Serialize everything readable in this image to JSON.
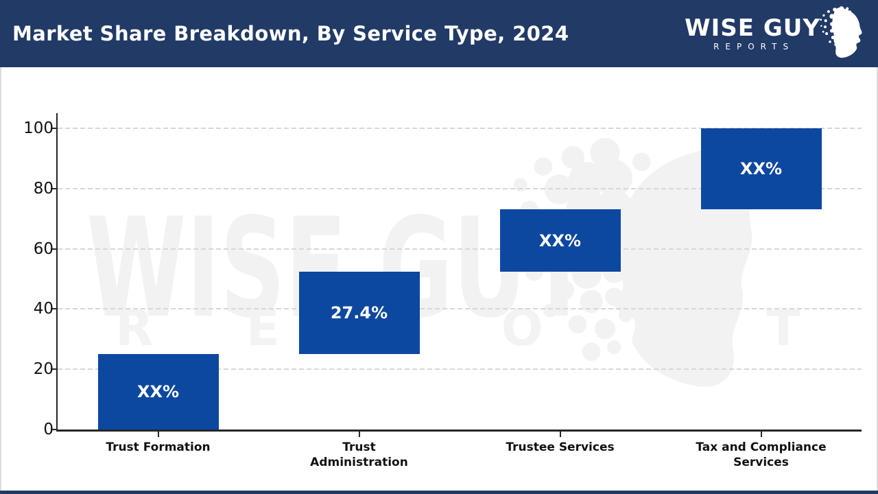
{
  "header": {
    "title": "Market Share Breakdown, By Service Type, 2024",
    "logo": {
      "line1": "WISE GUY",
      "line2": "REPORTS"
    }
  },
  "watermark": {
    "line1": "WISE GUY",
    "line2": "R E P O R T S"
  },
  "chart_data": {
    "type": "bar",
    "subtype": "waterfall",
    "title": "Market Share Breakdown, By Service Type, 2024",
    "xlabel": "",
    "ylabel": "",
    "ylim": [
      0,
      105
    ],
    "yticks": [
      0,
      20,
      40,
      60,
      80,
      100
    ],
    "grid": "horizontal-dashed",
    "legend": "none",
    "categories": [
      "Trust Formation",
      "Trust\nAdministration",
      "Trustee Services",
      "Tax and Compliance\nServices"
    ],
    "segments": [
      {
        "category": "Trust Formation",
        "start": 0,
        "end": 25,
        "label": "XX%"
      },
      {
        "category": "Trust Administration",
        "start": 25,
        "end": 52.4,
        "label": "27.4%"
      },
      {
        "category": "Trustee Services",
        "start": 52.4,
        "end": 73,
        "label": "XX%"
      },
      {
        "category": "Tax and Compliance Services",
        "start": 73,
        "end": 100,
        "label": "XX%"
      }
    ],
    "colors": {
      "bar": "#0d48a0",
      "grid": "#d7d7d7",
      "axis": "#262626",
      "bar_label_text": "#ffffff"
    }
  },
  "colors": {
    "header_bg": "#213a66",
    "footer_bg": "#213a66"
  }
}
